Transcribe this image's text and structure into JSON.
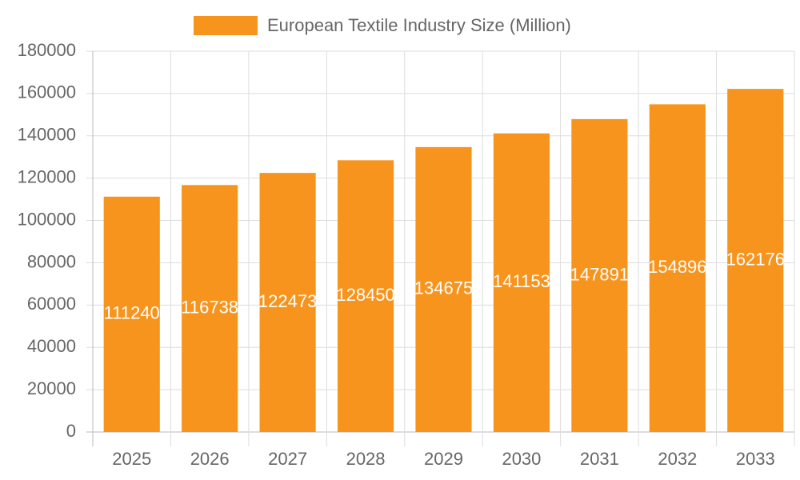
{
  "chart_data": {
    "type": "bar",
    "legend": "European Textile Industry Size (Million)",
    "categories": [
      "2025",
      "2026",
      "2027",
      "2028",
      "2029",
      "2030",
      "2031",
      "2032",
      "2033"
    ],
    "values": [
      111240,
      116738,
      122473,
      128450,
      134675,
      141153,
      147891,
      154896,
      162176
    ],
    "color": "#f7941e",
    "ylim": [
      0,
      180000
    ],
    "yticks": [
      0,
      20000,
      40000,
      60000,
      80000,
      100000,
      120000,
      140000,
      160000,
      180000
    ],
    "grid": true
  }
}
